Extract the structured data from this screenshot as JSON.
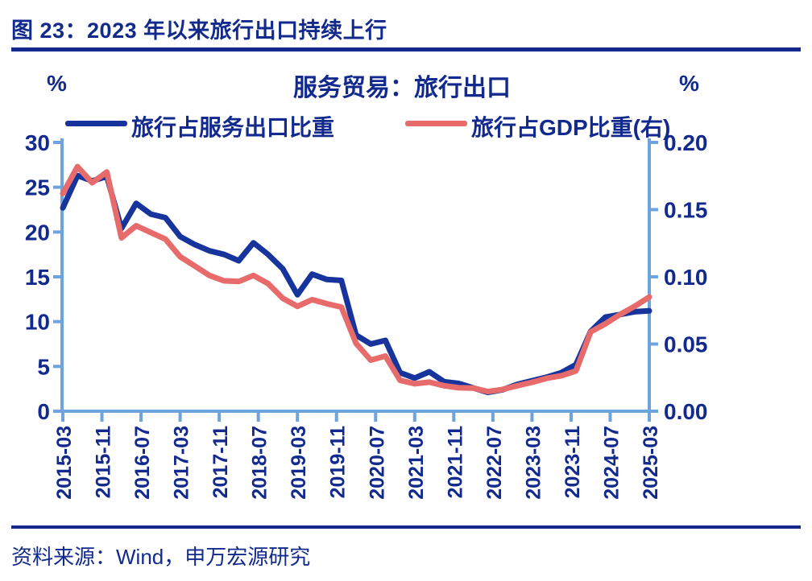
{
  "page": {
    "title": "图 23：2023 年以来旅行出口持续上行",
    "source": "资料来源：Wind，申万宏源研究"
  },
  "chart_data": {
    "type": "line",
    "title": "服务贸易：旅行出口",
    "left_axis_unit": "%",
    "right_axis_unit": "%",
    "grid": false,
    "legend_position": "top",
    "left_axis": {
      "min": 0,
      "max": 30,
      "ticks": [
        "0",
        "5",
        "10",
        "15",
        "20",
        "25",
        "30"
      ]
    },
    "right_axis": {
      "min": 0,
      "max": 0.2,
      "ticks": [
        "0.00",
        "0.05",
        "0.10",
        "0.15",
        "0.20"
      ]
    },
    "x_tick_labels": [
      "2015-03",
      "2015-11",
      "2016-07",
      "2017-03",
      "2017-11",
      "2018-07",
      "2019-03",
      "2019-11",
      "2020-07",
      "2021-03",
      "2021-11",
      "2022-07",
      "2023-03",
      "2023-11",
      "2024-07",
      "2025-03"
    ],
    "x_quarters": [
      "2015-03",
      "2015-06",
      "2015-09",
      "2015-12",
      "2016-03",
      "2016-06",
      "2016-09",
      "2016-12",
      "2017-03",
      "2017-06",
      "2017-09",
      "2017-12",
      "2018-03",
      "2018-06",
      "2018-09",
      "2018-12",
      "2019-03",
      "2019-06",
      "2019-09",
      "2019-12",
      "2020-03",
      "2020-06",
      "2020-09",
      "2020-12",
      "2021-03",
      "2021-06",
      "2021-09",
      "2021-12",
      "2022-03",
      "2022-06",
      "2022-09",
      "2022-12",
      "2023-03",
      "2023-06",
      "2023-09",
      "2023-12",
      "2024-03",
      "2024-06",
      "2024-09",
      "2024-12",
      "2025-03"
    ],
    "series": [
      {
        "name": "旅行占服务出口比重",
        "axis": "left",
        "color": "#17349C",
        "values": [
          22.7,
          26.3,
          25.7,
          26.2,
          20.4,
          23.2,
          22.0,
          21.6,
          19.5,
          18.6,
          17.9,
          17.5,
          16.8,
          18.8,
          17.5,
          15.9,
          13.0,
          15.3,
          14.7,
          14.6,
          8.5,
          7.5,
          7.9,
          4.3,
          3.7,
          4.4,
          3.3,
          3.1,
          2.6,
          2.1,
          2.4,
          3.0,
          3.4,
          3.8,
          4.3,
          5.2,
          8.9,
          10.5,
          10.8,
          11.1,
          11.2
        ]
      },
      {
        "name": "旅行占GDP比重(右)",
        "axis": "right",
        "color": "#E76B6B",
        "values": [
          0.162,
          0.182,
          0.17,
          0.178,
          0.129,
          0.138,
          0.133,
          0.128,
          0.115,
          0.108,
          0.101,
          0.097,
          0.0965,
          0.101,
          0.095,
          0.084,
          0.078,
          0.083,
          0.08,
          0.0775,
          0.0505,
          0.038,
          0.041,
          0.023,
          0.0204,
          0.0216,
          0.019,
          0.0174,
          0.0172,
          0.0146,
          0.0162,
          0.019,
          0.0215,
          0.0245,
          0.0264,
          0.03,
          0.059,
          0.065,
          0.072,
          0.078,
          0.085
        ]
      }
    ],
    "colors": {
      "text": "#12298E",
      "axis_line": "#6FA3DC"
    }
  }
}
